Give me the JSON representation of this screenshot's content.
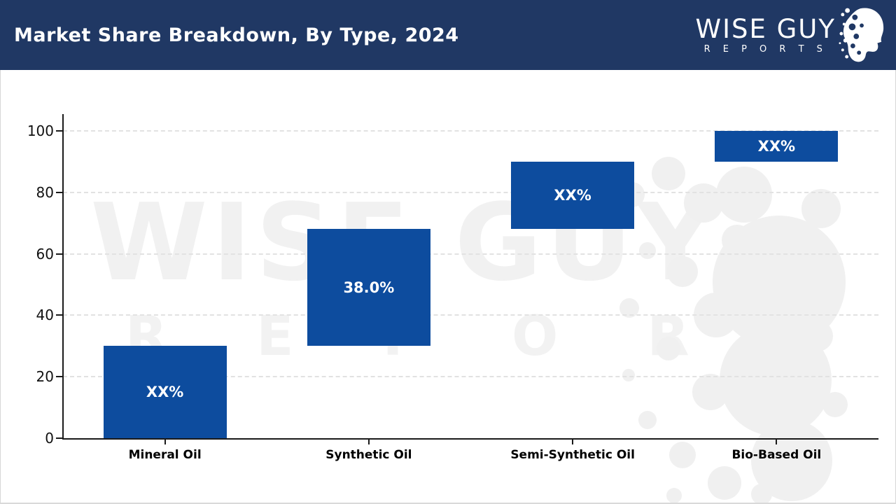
{
  "header": {
    "title": "Market Share Breakdown, By Type, 2024",
    "logo": {
      "wordmark": "WISE GUY",
      "subtext": "R E P O R T S"
    }
  },
  "watermark": {
    "wordmark": "WISE GUY",
    "subtext": "R E P O R T S"
  },
  "chart_data": {
    "type": "bar",
    "variant": "floating-segment-waterfall",
    "title": "Market Share Breakdown, By Type, 2024",
    "categories": [
      "Mineral Oil",
      "Synthetic Oil",
      "Semi-Synthetic Oil",
      "Bio-Based Oil"
    ],
    "segments": [
      {
        "category": "Mineral Oil",
        "from": 0,
        "to": 30,
        "label": "XX%"
      },
      {
        "category": "Synthetic Oil",
        "from": 30,
        "to": 68,
        "label": "38.0%"
      },
      {
        "category": "Semi-Synthetic Oil",
        "from": 68,
        "to": 90,
        "label": "XX%"
      },
      {
        "category": "Bio-Based Oil",
        "from": 90,
        "to": 100,
        "label": "XX%"
      }
    ],
    "implied_values": [
      30,
      38,
      22,
      10
    ],
    "y_ticks": [
      0,
      20,
      40,
      60,
      80,
      100
    ],
    "ylim": [
      0,
      105
    ],
    "xlabel": "",
    "ylabel": "",
    "grid": "horizontal-dashed",
    "legend": "none",
    "colors": {
      "bar": "#0d4c9e",
      "bar_label": "#ffffff",
      "axis": "#1a1a1a",
      "grid": "#e2e2e2",
      "header_bg": "#203864",
      "watermark": "#f1f1f1"
    }
  }
}
